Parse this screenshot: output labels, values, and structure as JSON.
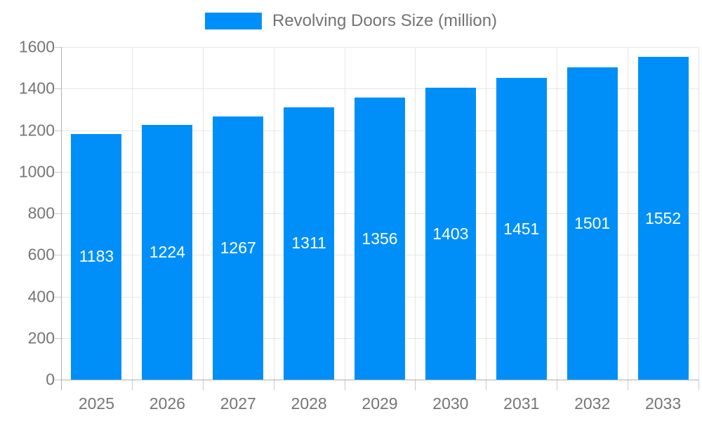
{
  "chart_data": {
    "type": "bar",
    "title": "Revolving Doors Size (million)",
    "categories": [
      "2025",
      "2026",
      "2027",
      "2028",
      "2029",
      "2030",
      "2031",
      "2032",
      "2033"
    ],
    "values": [
      1183,
      1224,
      1267,
      1311,
      1356,
      1403,
      1451,
      1501,
      1552
    ],
    "value_labels": [
      "1183",
      "1224",
      "1267",
      "1311",
      "1356",
      "1403",
      "1451",
      "1501",
      "1552"
    ],
    "xlabel": "",
    "ylabel": "",
    "ylim": [
      0,
      1600
    ],
    "ytick_step": 200,
    "yticks": [
      0,
      200,
      400,
      600,
      800,
      1000,
      1200,
      1400,
      1600
    ],
    "grid": true,
    "legend_position": "top",
    "legend_marker": "rectangle",
    "colors": {
      "bar": "#008ff8",
      "value_label": "#ffffff",
      "axis_text": "#757575",
      "legend_text": "#737373",
      "gridline": "#e6e6e6",
      "tick": "#c9c9c9",
      "axis_line": "#b0b0b0",
      "background": "#ffffff"
    }
  }
}
